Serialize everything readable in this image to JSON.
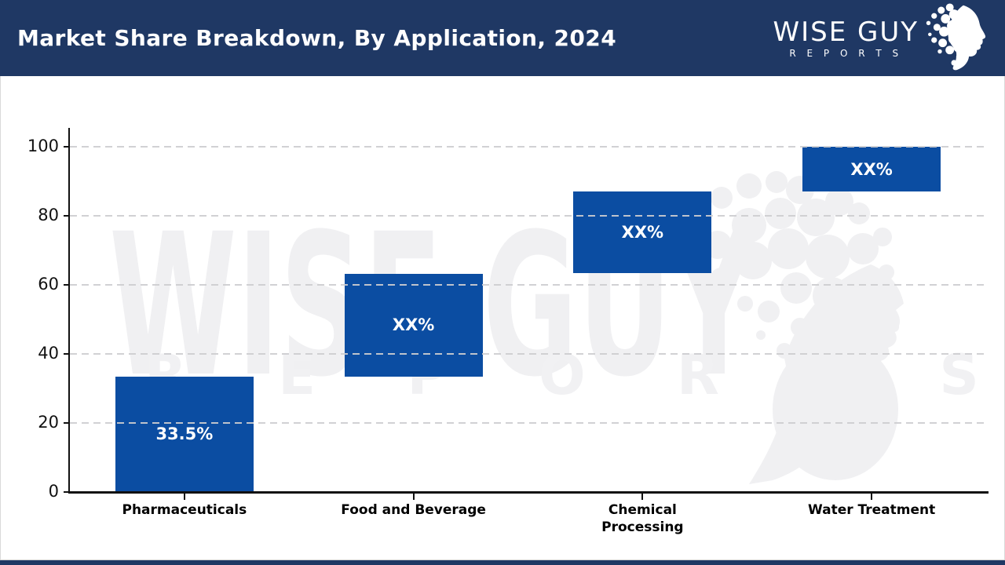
{
  "header": {
    "title": "Market Share Breakdown, By Application, 2024",
    "logo": {
      "line1": "WISE GUY",
      "line2": "R E P O R T S"
    }
  },
  "watermark": {
    "line1": "WISE GUY",
    "line2": "R E P O R T S"
  },
  "chart_data": {
    "type": "bar",
    "variant": "waterfall",
    "title": "Market Share Breakdown, By Application, 2024",
    "xlabel": "",
    "ylabel": "",
    "categories": [
      "Pharmaceuticals",
      "Food and Beverage",
      "Chemical\nProcessing",
      "Water Treatment"
    ],
    "segments": [
      {
        "category": "Pharmaceuticals",
        "start": 0,
        "end": 33.5,
        "label": "33.5%"
      },
      {
        "category": "Food and Beverage",
        "start": 33.5,
        "end": 63.2,
        "label": "XX%"
      },
      {
        "category": "Chemical Processing",
        "start": 63.4,
        "end": 87,
        "label": "XX%"
      },
      {
        "category": "Water Treatment",
        "start": 87,
        "end": 100,
        "label": "XX%"
      }
    ],
    "yticks": [
      0,
      20,
      40,
      60,
      80,
      100
    ],
    "ylim": [
      0,
      105
    ],
    "grid": {
      "horizontal": true,
      "style": "dashed"
    },
    "legend": "none",
    "bar_color": "#0b4da2",
    "bar_label_color": "#ffffff"
  },
  "colors": {
    "header_navy": "#1f3864",
    "bar_blue": "#0b4da2",
    "gridline": "#cdcdd0",
    "axis": "#111111",
    "watermark_gray": "#f0f0f2"
  }
}
